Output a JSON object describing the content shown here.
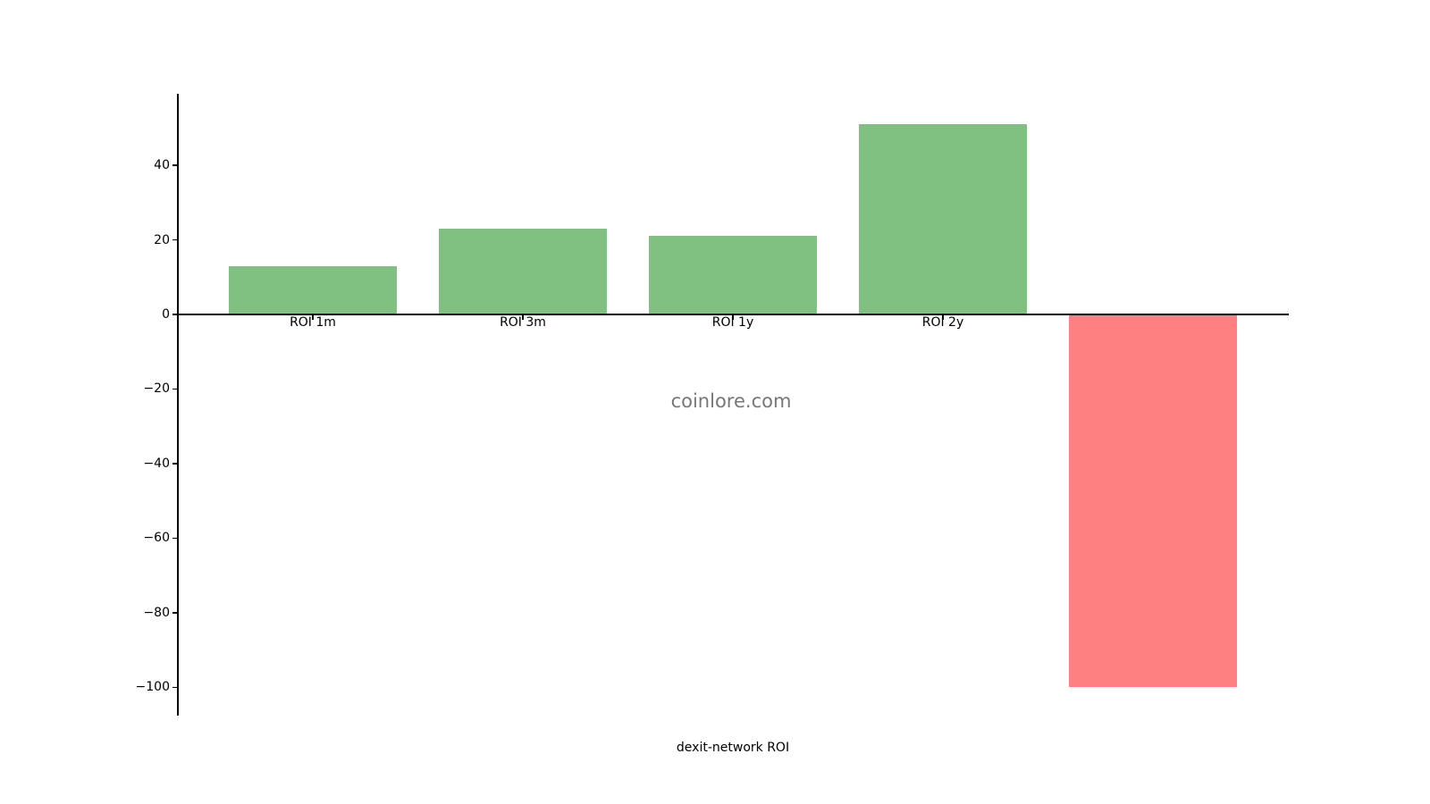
{
  "page": {
    "background": "#ffffff"
  },
  "chart_data": {
    "type": "bar",
    "title": "",
    "xlabel": "dexit-network ROI",
    "ylabel": "",
    "watermark": "coinlore.com",
    "watermark_color": "#777777",
    "categories": [
      "ROI 1m",
      "ROI 3m",
      "ROI 1y",
      "ROI 2y",
      ""
    ],
    "values": [
      13,
      23,
      21,
      51,
      -100
    ],
    "positive_color": "#80c080",
    "negative_color": "#ff8080",
    "axis_color": "#000000",
    "yticks": [
      40,
      20,
      0,
      -20,
      -40,
      -60,
      -80,
      -100
    ],
    "ytick_labels": [
      "40",
      "20",
      "0",
      "−20",
      "−40",
      "−60",
      "−80",
      "−100"
    ],
    "ylim": [
      -107.6,
      59.2
    ],
    "grid": false,
    "legend": false
  }
}
